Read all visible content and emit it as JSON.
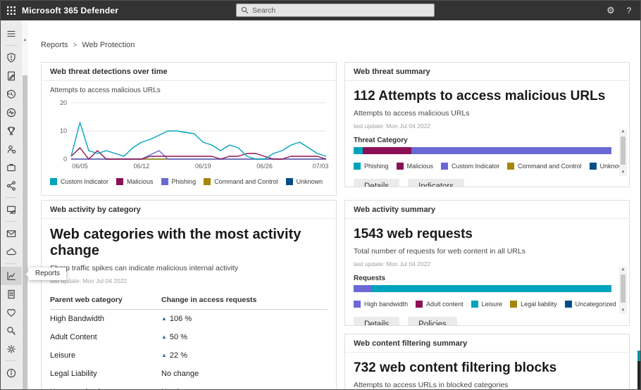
{
  "topbar": {
    "title": "Microsoft 365 Defender",
    "search_placeholder": "Search",
    "help_glyph": "?"
  },
  "breadcrumb": {
    "items": [
      "Reports",
      "Web Protection"
    ],
    "separator": ">"
  },
  "sidebar": {
    "tooltip": "Reports",
    "items": [
      {
        "icon": "menu"
      },
      {
        "divider": true
      },
      {
        "icon": "shield"
      },
      {
        "icon": "page-edit"
      },
      {
        "icon": "history"
      },
      {
        "icon": "pulse"
      },
      {
        "icon": "trophy"
      },
      {
        "icon": "person"
      },
      {
        "icon": "briefcase"
      },
      {
        "icon": "share"
      },
      {
        "divider": true
      },
      {
        "icon": "monitor"
      },
      {
        "divider": true
      },
      {
        "icon": "mail"
      },
      {
        "icon": "cloud"
      },
      {
        "divider": true
      },
      {
        "icon": "line-chart",
        "selected": true
      },
      {
        "icon": "document"
      },
      {
        "icon": "heart"
      },
      {
        "icon": "magnifier"
      },
      {
        "icon": "gear"
      },
      {
        "divider": true
      },
      {
        "icon": "info"
      }
    ]
  },
  "cards": {
    "threat_detections": {
      "header": "Web threat detections over time",
      "chart_label": "Attempts to access malicious URLs"
    },
    "threat_summary": {
      "header": "Web threat summary",
      "title": "112 Attempts to access malicious URLs",
      "subtitle": "Attempts to access malicious URLs",
      "last_update": "last update: Mon Jul 04 2022",
      "bar_label": "Threat Category",
      "buttons": [
        "Details",
        "Indicators"
      ]
    },
    "activity_by_category": {
      "header": "Web activity by category",
      "title": "Web categories with the most activity change",
      "subtitle": "Sharp traffic spikes can indicate malicious internal activity",
      "last_update": "last update: Mon Jul 04 2022",
      "table": {
        "columns": [
          "Parent web category",
          "Change in access requests"
        ],
        "rows": [
          {
            "category": "High Bandwidth",
            "change": "106 %",
            "direction": "up"
          },
          {
            "category": "Adult Content",
            "change": "50 %",
            "direction": "up"
          },
          {
            "category": "Leisure",
            "change": "22 %",
            "direction": "up"
          },
          {
            "category": "Legal Liability",
            "change": "No change",
            "direction": "none"
          },
          {
            "category": "Uncategorized",
            "change": "No change",
            "direction": "none"
          }
        ]
      }
    },
    "activity_summary": {
      "header": "Web activity summary",
      "title": "1543 web requests",
      "subtitle": "Total number of requests for web content in all URLs",
      "last_update": "last update: Mon Jul 04 2022",
      "bar_label": "Requests",
      "buttons": [
        "Details",
        "Policies"
      ]
    },
    "content_filtering": {
      "header": "Web content filtering summary",
      "title": "732 web content filtering blocks",
      "subtitle": "Attempts to access URLs in blocked categories"
    }
  },
  "chart_data": [
    {
      "type": "line",
      "title": "Attempts to access malicious URLs",
      "n_points": 30,
      "x_ticks": [
        "06/05",
        "06/12",
        "06/19",
        "06/26",
        "07/03"
      ],
      "tick_indices": [
        1,
        8,
        15,
        22,
        29
      ],
      "ylim": [
        0,
        20
      ],
      "y_ticks": [
        0,
        10,
        20
      ],
      "grid": true,
      "legend_position": "bottom",
      "series": [
        {
          "name": "Custom Indicator",
          "color": "#00a3bc",
          "values": [
            1,
            13,
            3,
            2,
            3,
            2,
            1,
            4,
            6,
            7,
            8.5,
            10,
            10,
            9.5,
            9,
            6,
            5,
            3,
            5,
            4,
            1,
            0,
            0,
            2,
            3,
            5,
            6,
            4,
            2,
            1
          ]
        },
        {
          "name": "Malicious",
          "color": "#8c1056",
          "values": [
            1,
            4,
            0,
            3,
            0,
            0,
            0,
            0,
            0,
            1,
            1,
            1,
            1,
            1,
            1,
            1,
            1,
            0,
            1,
            1,
            2,
            2,
            1,
            0,
            0,
            1,
            1,
            1,
            1,
            0
          ]
        },
        {
          "name": "Phishing",
          "color": "#6b69d6",
          "values": [
            0,
            0,
            0,
            0,
            0,
            0,
            0,
            0,
            0,
            1.5,
            3,
            0,
            0,
            0,
            0,
            0,
            0,
            0,
            0,
            0,
            0,
            0,
            0,
            0,
            0,
            0,
            0,
            0,
            0,
            0
          ]
        },
        {
          "name": "Command and Control",
          "color": "#a4870b",
          "values": [
            0,
            0,
            0,
            0,
            0,
            0,
            0,
            0,
            0,
            0,
            0,
            0,
            0,
            0,
            0,
            0,
            0,
            0,
            0,
            0,
            0,
            0,
            0,
            0,
            0,
            0,
            0,
            0,
            0,
            0
          ]
        },
        {
          "name": "Unknown",
          "color": "#004e8c",
          "values": [
            0,
            0,
            0,
            0,
            0,
            0,
            0,
            0,
            0,
            0,
            0,
            0,
            0,
            0,
            0,
            0,
            0,
            0,
            0,
            0,
            0,
            0,
            0,
            0,
            0,
            0,
            0,
            0,
            0,
            0
          ]
        }
      ]
    },
    {
      "type": "bar",
      "variant": "stacked-horizontal",
      "title": "Threat Category",
      "total": 112,
      "segments": [
        {
          "name": "Phishing",
          "color": "#00a3bc",
          "value": 4
        },
        {
          "name": "Malicious",
          "color": "#8c1056",
          "value": 21
        },
        {
          "name": "Custom Indicator",
          "color": "#6b69d6",
          "value": 87
        },
        {
          "name": "Command and Control",
          "color": "#a4870b",
          "value": 0
        },
        {
          "name": "Unknown",
          "color": "#004e8c",
          "value": 0
        }
      ]
    },
    {
      "type": "bar",
      "variant": "stacked-horizontal",
      "title": "Requests",
      "total": 1543,
      "segments": [
        {
          "name": "High bandwidth",
          "color": "#6b69d6",
          "value": 108
        },
        {
          "name": "Adult content",
          "color": "#8c1056",
          "value": 0
        },
        {
          "name": "Leisure",
          "color": "#00a3bc",
          "value": 1435
        },
        {
          "name": "Legal liability",
          "color": "#a4870b",
          "value": 0
        },
        {
          "name": "Uncategorized",
          "color": "#004e8c",
          "value": 0
        }
      ]
    }
  ],
  "colors": {
    "accent_teal": "#00a3bc",
    "magenta": "#8c1056",
    "purple": "#6b69d6",
    "gold": "#a4870b",
    "navy": "#004e8c",
    "increase_arrow": "#2f6fa7"
  }
}
